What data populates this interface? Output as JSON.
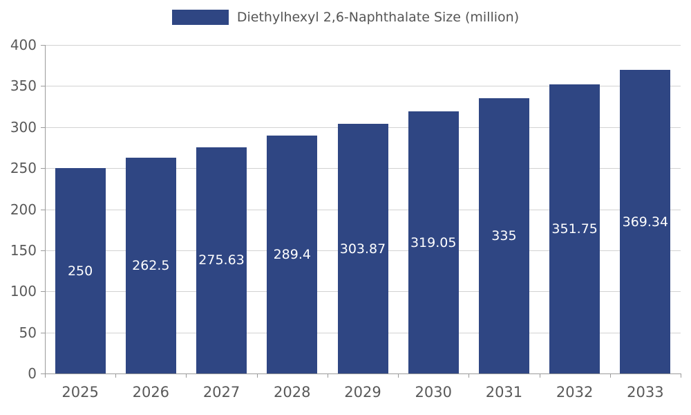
{
  "chart_data": {
    "type": "bar",
    "title": "",
    "legend": "Diethylhexyl 2,6-Naphthalate Size (million)",
    "legend_position": "top-center",
    "categories": [
      "2025",
      "2026",
      "2027",
      "2028",
      "2029",
      "2030",
      "2031",
      "2032",
      "2033"
    ],
    "values": [
      250,
      262.5,
      275.63,
      289.4,
      303.87,
      319.05,
      335,
      351.75,
      369.34
    ],
    "value_labels": [
      "250",
      "262.5",
      "275.63",
      "289.4",
      "303.87",
      "319.05",
      "335",
      "351.75",
      "369.34"
    ],
    "xlabel": "",
    "ylabel": "",
    "ylim": [
      0,
      400
    ],
    "yticks": [
      0,
      50,
      100,
      150,
      200,
      250,
      300,
      350,
      400
    ],
    "grid": "horizontal",
    "colors": {
      "bar": "#2f4683",
      "grid": "#d2d2d2",
      "axis": "#9a9a9a",
      "tick_text": "#595959",
      "value_label": "#ffffff"
    }
  }
}
